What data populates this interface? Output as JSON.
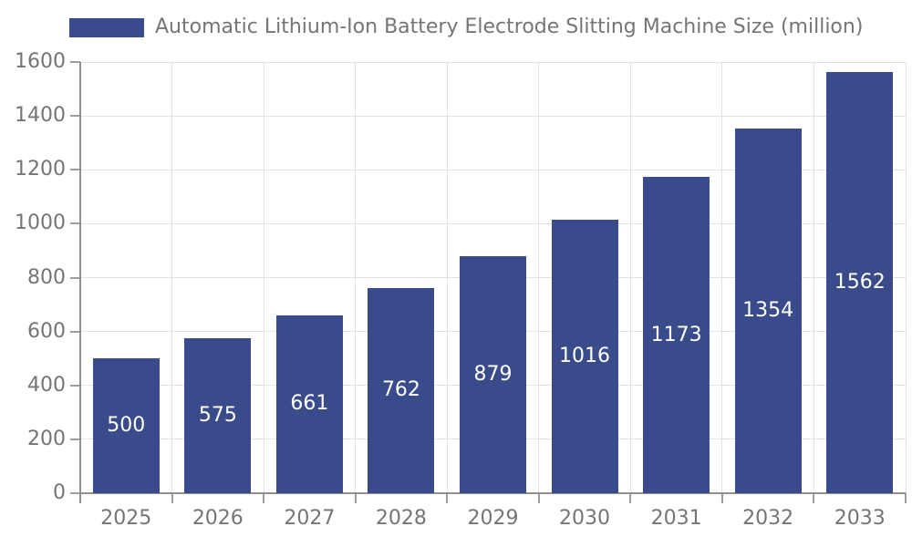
{
  "chart_data": {
    "type": "bar",
    "title": "Automatic Lithium-Ion Battery Electrode Slitting Machine Size (million)",
    "legend": [
      "Automatic Lithium-Ion Battery Electrode Slitting Machine Size (million)"
    ],
    "legend_position": "top",
    "categories": [
      "2025",
      "2026",
      "2027",
      "2028",
      "2029",
      "2030",
      "2031",
      "2032",
      "2033"
    ],
    "values": [
      500,
      575,
      661,
      762,
      879,
      1016,
      1173,
      1354,
      1562
    ],
    "xlabel": "",
    "ylabel": "",
    "ylim": [
      0,
      1600
    ],
    "yticks": [
      0,
      200,
      400,
      600,
      800,
      1000,
      1200,
      1400,
      1600
    ],
    "grid": "both",
    "value_labels": "inside-center",
    "colors": {
      "bar": "#3A4B8C",
      "bar_label": "#FFFFFF",
      "axis_text": "#757575",
      "grid": "#E1E1E7",
      "axis_line": "#8F8F8F",
      "tick": "#9E9E9E",
      "background": "#FFFFFF"
    }
  }
}
